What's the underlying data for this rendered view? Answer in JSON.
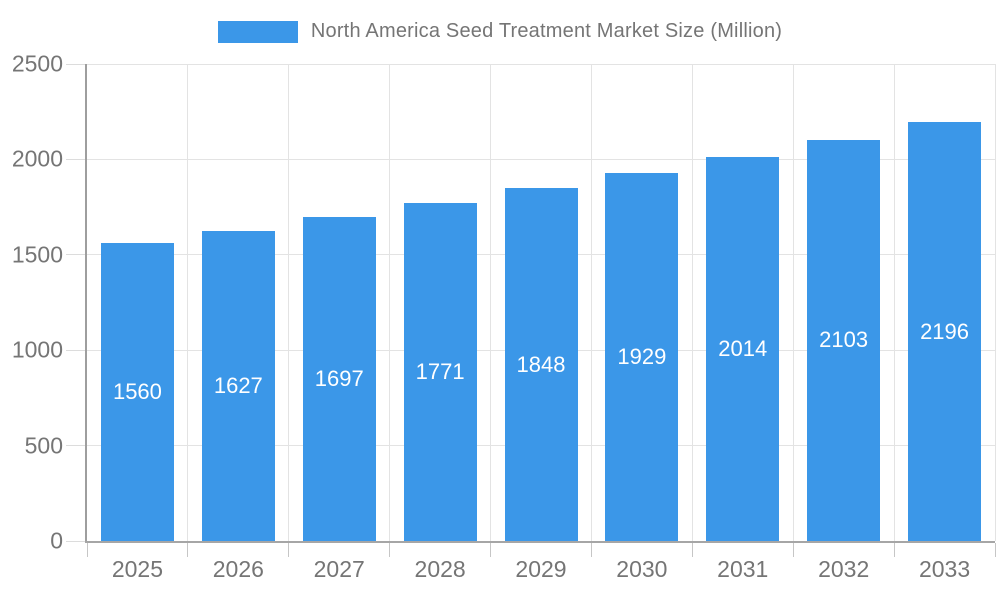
{
  "chart_data": {
    "type": "bar",
    "title": "North America Seed Treatment Market Size (Million)",
    "categories": [
      "2025",
      "2026",
      "2027",
      "2028",
      "2029",
      "2030",
      "2031",
      "2032",
      "2033"
    ],
    "values": [
      1560,
      1627,
      1697,
      1771,
      1848,
      1929,
      2014,
      2103,
      2196
    ],
    "xlabel": "",
    "ylabel": "",
    "ylim": [
      0,
      2500
    ],
    "yticks": [
      0,
      500,
      1000,
      1500,
      2000,
      2500
    ],
    "grid": true,
    "legend_position": "top",
    "colors": {
      "bar": "#3b97e8",
      "bar_label": "#ffffff",
      "axis_text": "#757575",
      "gridline": "#e3e3e3",
      "axis_line": "#9e9e9e"
    }
  }
}
